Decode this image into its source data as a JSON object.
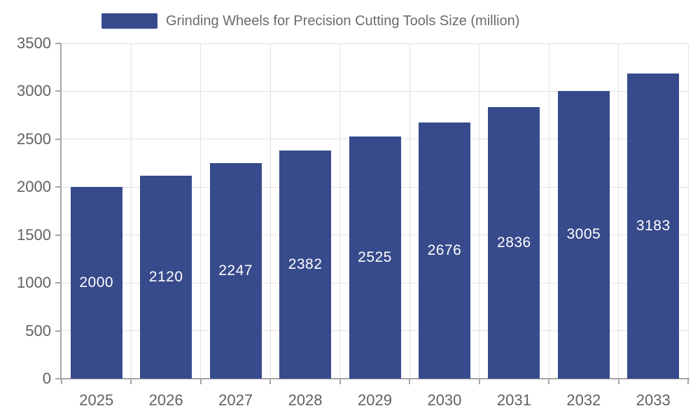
{
  "legend": {
    "label": "Grinding Wheels for Precision Cutting Tools Size (million)"
  },
  "chart_data": {
    "type": "bar",
    "title": "Grinding Wheels for Precision Cutting Tools Size (million)",
    "categories": [
      "2025",
      "2026",
      "2027",
      "2028",
      "2029",
      "2030",
      "2031",
      "2032",
      "2033"
    ],
    "values": [
      2000,
      2120,
      2247,
      2382,
      2525,
      2676,
      2836,
      3005,
      3183
    ],
    "xlabel": "",
    "ylabel": "",
    "ylim": [
      0,
      3500
    ],
    "yticks": [
      0,
      500,
      1000,
      1500,
      2000,
      2500,
      3000,
      3500
    ],
    "grid": true,
    "legend_position": "top",
    "value_labels": "inside-center"
  },
  "colors": {
    "bar": "#374A8B",
    "value_label": "#FFFFFF",
    "axis_label": "#616161",
    "legend_text": "#6B6B6B",
    "gridline": "#E2E2E2",
    "axis_line": "#A6A6A6",
    "background": "#FFFFFF"
  }
}
